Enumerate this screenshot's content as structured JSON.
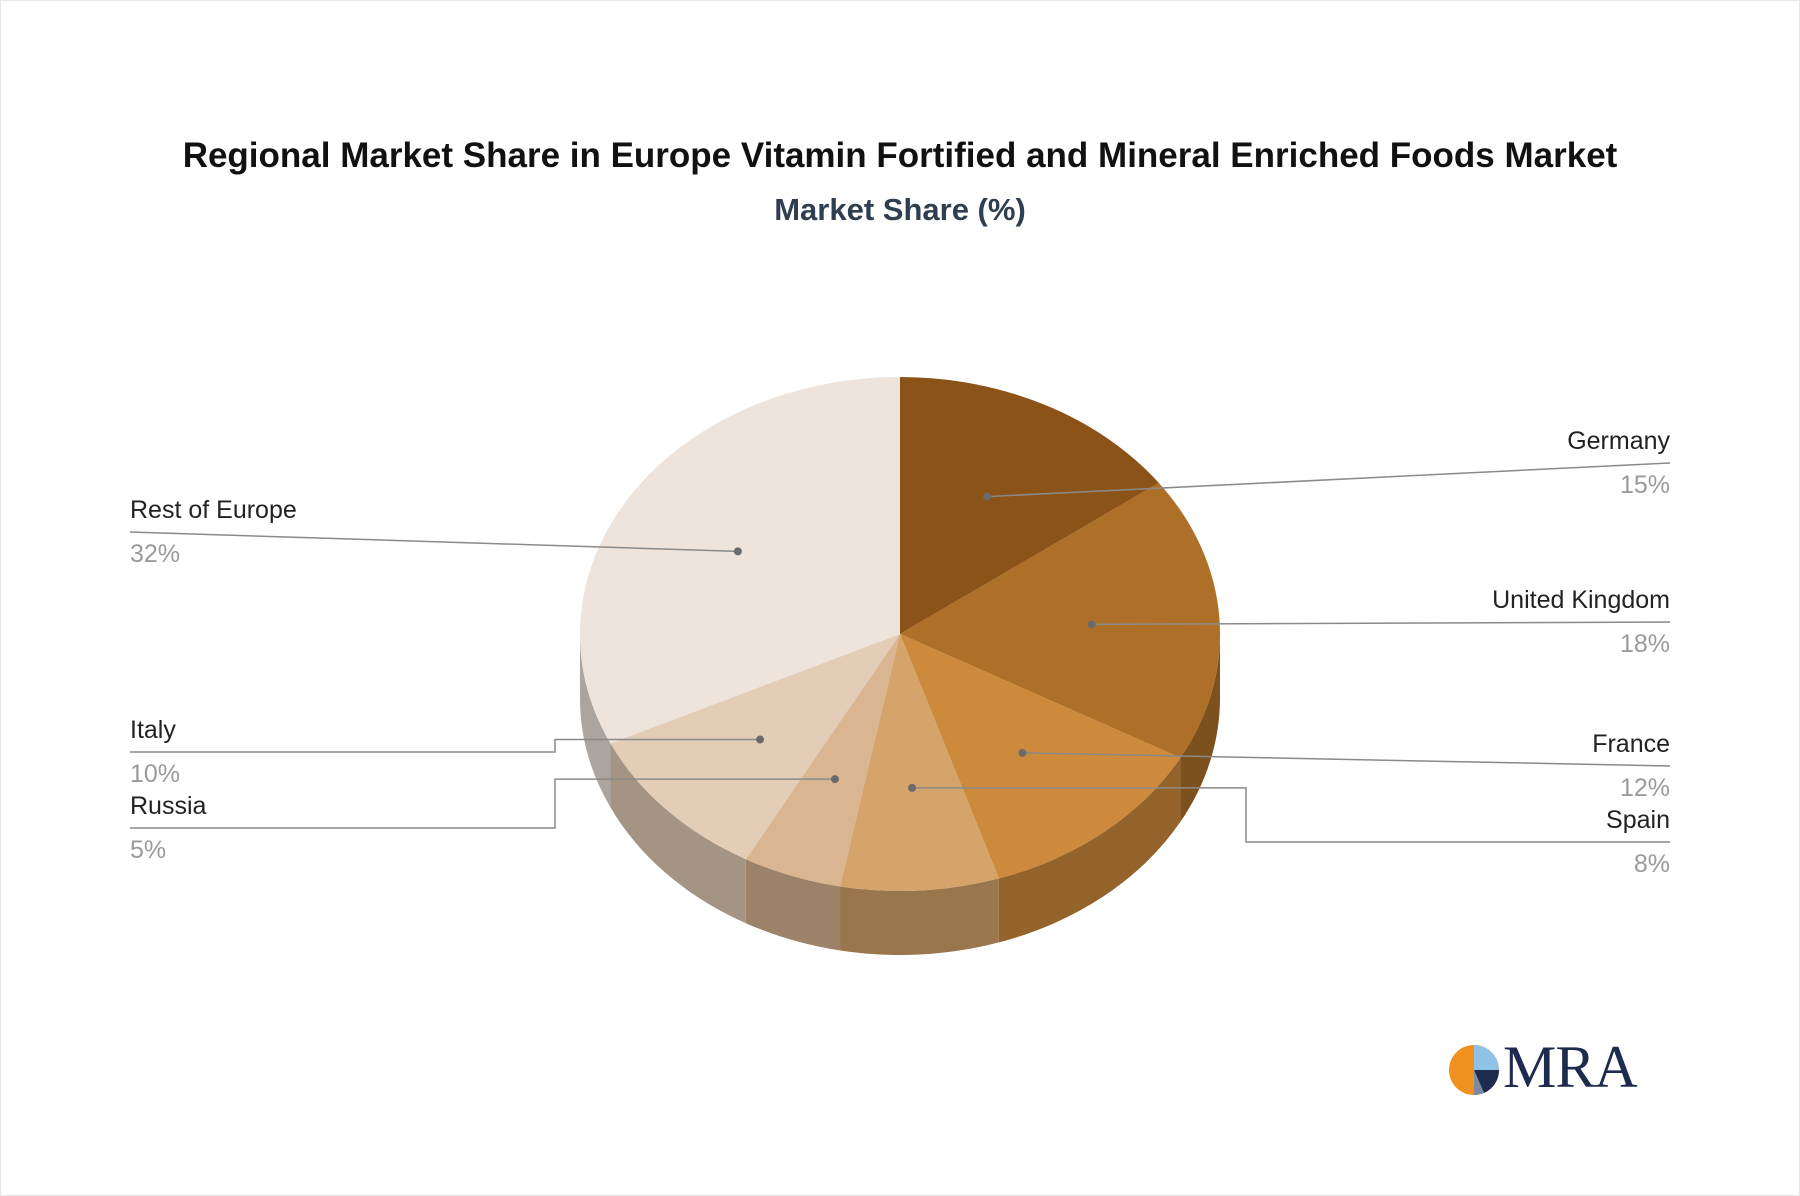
{
  "header": {
    "title": "Regional Market Share in Europe Vitamin Fortified and Mineral Enriched Foods Market",
    "subtitle": "Market Share (%)"
  },
  "logo": {
    "text": "MRA",
    "icon": "pie-logo-icon"
  },
  "chart_data": {
    "type": "pie",
    "title": "Regional Market Share in Europe Vitamin Fortified and Mineral Enriched Foods Market",
    "subtitle": "Market Share (%)",
    "style": "3d",
    "slices": [
      {
        "label": "Germany",
        "value": 15,
        "value_label": "15%",
        "color": "#8b5317"
      },
      {
        "label": "United Kingdom",
        "value": 18,
        "value_label": "18%",
        "color": "#ae7028"
      },
      {
        "label": "France",
        "value": 12,
        "value_label": "12%",
        "color": "#cd893c"
      },
      {
        "label": "Spain",
        "value": 8,
        "value_label": "8%",
        "color": "#d4a46a"
      },
      {
        "label": "Russia",
        "value": 5,
        "value_label": "5%",
        "color": "#d9b591"
      },
      {
        "label": "Italy",
        "value": 10,
        "value_label": "10%",
        "color": "#e3cdb7"
      },
      {
        "label": "Rest of Europe",
        "value": 32,
        "value_label": "32%",
        "color": "#efe4db"
      }
    ]
  }
}
